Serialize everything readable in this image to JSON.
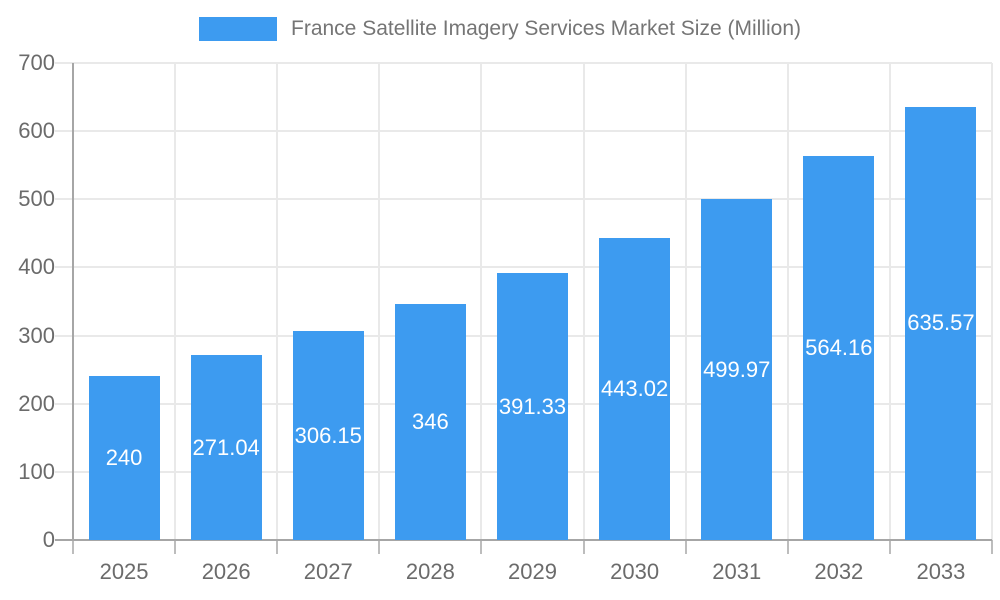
{
  "legend": {
    "label": "France Satellite Imagery Services Market Size (Million)",
    "swatch_color": "#3d9bf0"
  },
  "chart_data": {
    "type": "bar",
    "title": "France Satellite Imagery Services Market Size (Million)",
    "categories": [
      "2025",
      "2026",
      "2027",
      "2028",
      "2029",
      "2030",
      "2031",
      "2032",
      "2033"
    ],
    "values": [
      240,
      271.04,
      306.15,
      346,
      391.33,
      443.02,
      499.97,
      564.16,
      635.57
    ],
    "value_labels": [
      "240",
      "271.04",
      "306.15",
      "346",
      "391.33",
      "443.02",
      "499.97",
      "564.16",
      "635.57"
    ],
    "xlabel": "",
    "ylabel": "",
    "ylim": [
      0,
      700
    ],
    "ytick_step": 100,
    "ytick_labels": [
      "0",
      "100",
      "200",
      "300",
      "400",
      "500",
      "600",
      "700"
    ],
    "grid": true,
    "legend_position": "top",
    "bar_color": "#3d9bf0",
    "colors": {
      "background": "#ffffff",
      "axis_line": "#a6a6a6",
      "gridline": "#e9e9e9",
      "tick": "#bdbdbd",
      "axis_text": "#6b6b6b",
      "legend_text": "#757575",
      "value_label_text": "#ffffff"
    }
  }
}
